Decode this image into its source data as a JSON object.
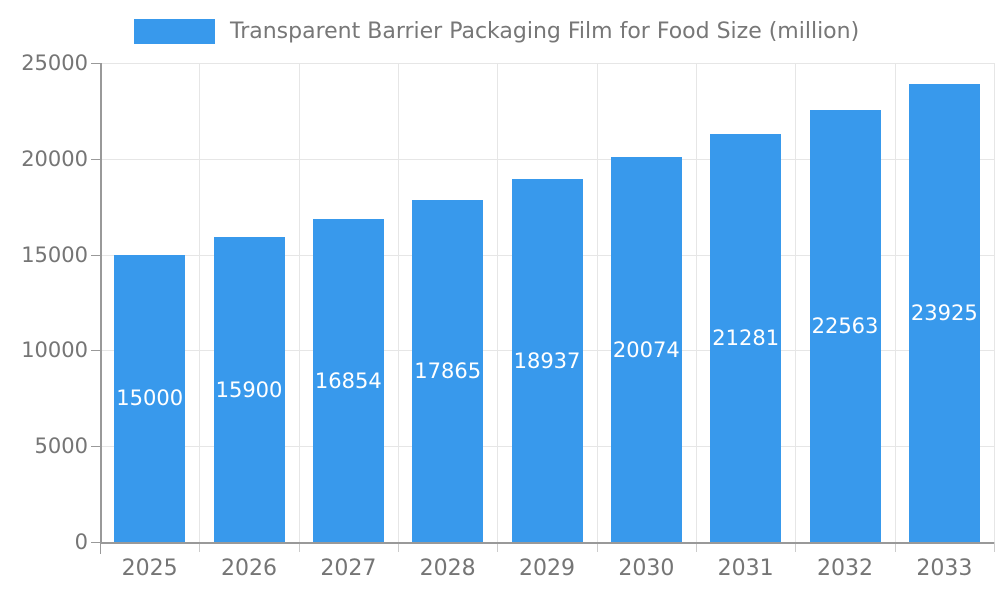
{
  "chart_data": {
    "type": "bar",
    "title": "Transparent Barrier Packaging Film for Food Size (million)",
    "categories": [
      "2025",
      "2026",
      "2027",
      "2028",
      "2029",
      "2030",
      "2031",
      "2032",
      "2033"
    ],
    "series": [
      {
        "name": "Transparent Barrier Packaging Film for Food Size (million)",
        "values": [
          15000,
          15900,
          16854,
          17865,
          18937,
          20074,
          21281,
          22563,
          23925
        ]
      }
    ],
    "value_labels": [
      "15000",
      "15900",
      "16854",
      "17865",
      "18937",
      "20074",
      "21281",
      "22563",
      "23925"
    ],
    "xlabel": "",
    "ylabel": "",
    "ylim": [
      0,
      25000
    ],
    "ytick_interval": 5000,
    "ytick_labels": [
      "0",
      "5000",
      "10000",
      "15000",
      "20000",
      "25000"
    ],
    "grid": true,
    "legend_position": "top",
    "value_label_position": "inside-center"
  },
  "colors": {
    "bar": "#3899ec",
    "grid": "#e6e6e6",
    "axis": "#999999",
    "xtick": "#cccccc",
    "axis_text": "#757575",
    "legend_text": "#777777",
    "bar_label_text": "#ffffff",
    "background": "#ffffff"
  }
}
